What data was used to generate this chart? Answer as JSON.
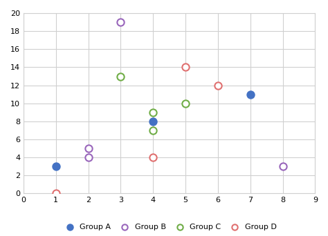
{
  "groups": {
    "Group A": {
      "x": [
        1,
        4,
        7
      ],
      "y": [
        3,
        8,
        11
      ],
      "edge_color": "#4472c4",
      "face_color": "#4472c4",
      "filled": true
    },
    "Group B": {
      "x": [
        2,
        2,
        3,
        8
      ],
      "y": [
        5,
        4,
        19,
        3
      ],
      "edge_color": "#9966bb",
      "face_color": "#ffffff",
      "filled": false
    },
    "Group C": {
      "x": [
        3,
        4,
        4,
        5
      ],
      "y": [
        13,
        9,
        7,
        10
      ],
      "edge_color": "#70ad47",
      "face_color": "#ffffff",
      "filled": false
    },
    "Group D": {
      "x": [
        1,
        4,
        5,
        6
      ],
      "y": [
        0,
        4,
        14,
        12
      ],
      "edge_color": "#e07070",
      "face_color": "#ffffff",
      "filled": false
    }
  },
  "xlim": [
    0,
    9
  ],
  "ylim": [
    0,
    20
  ],
  "xticks": [
    0,
    1,
    2,
    3,
    4,
    5,
    6,
    7,
    8,
    9
  ],
  "yticks": [
    0,
    2,
    4,
    6,
    8,
    10,
    12,
    14,
    16,
    18,
    20
  ],
  "background_color": "#ffffff",
  "grid_color": "#d0d0d0",
  "legend_order": [
    "Group A",
    "Group B",
    "Group C",
    "Group D"
  ],
  "marker_size": 55,
  "linewidth": 1.5,
  "tick_fontsize": 8,
  "legend_fontsize": 8
}
